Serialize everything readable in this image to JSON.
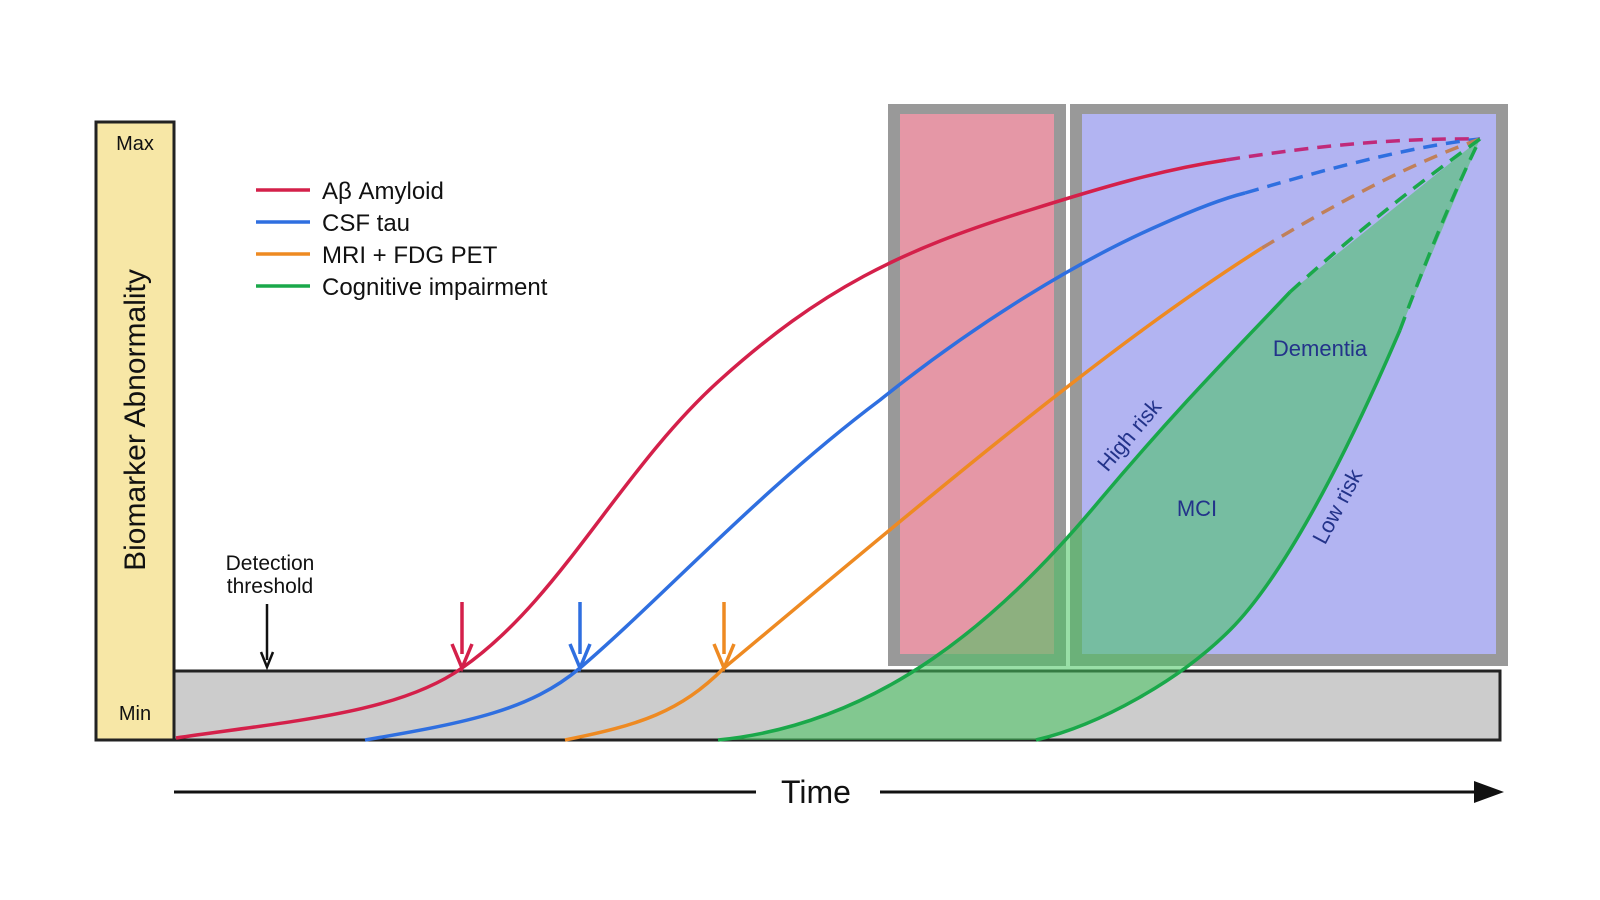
{
  "y_axis": {
    "label": "Biomarker Abnormality",
    "max_label": "Max",
    "min_label": "Min"
  },
  "x_axis": {
    "label": "Time"
  },
  "threshold": {
    "label_line1": "Detection",
    "label_line2": "threshold"
  },
  "legend": [
    {
      "label": "Aβ Amyloid",
      "color": "#d4204a"
    },
    {
      "label": "CSF tau",
      "color": "#2f6fe0"
    },
    {
      "label": "MRI + FDG PET",
      "color": "#ee8a22"
    },
    {
      "label": "Cognitive impairment",
      "color": "#1aa84a"
    }
  ],
  "annotations": {
    "dementia": "Dementia",
    "mci": "MCI",
    "high_risk": "High risk",
    "low_risk": "Low risk"
  },
  "colors": {
    "axis_panel": "#f7e7a6",
    "threshold_band": "#cccccc",
    "frame_gray": "#999999",
    "mci_region": "#e597a6",
    "dementia_region": "#b2b4f2",
    "cognitive_fill": "#5fd06e",
    "annotation_text": "#23338a"
  }
}
